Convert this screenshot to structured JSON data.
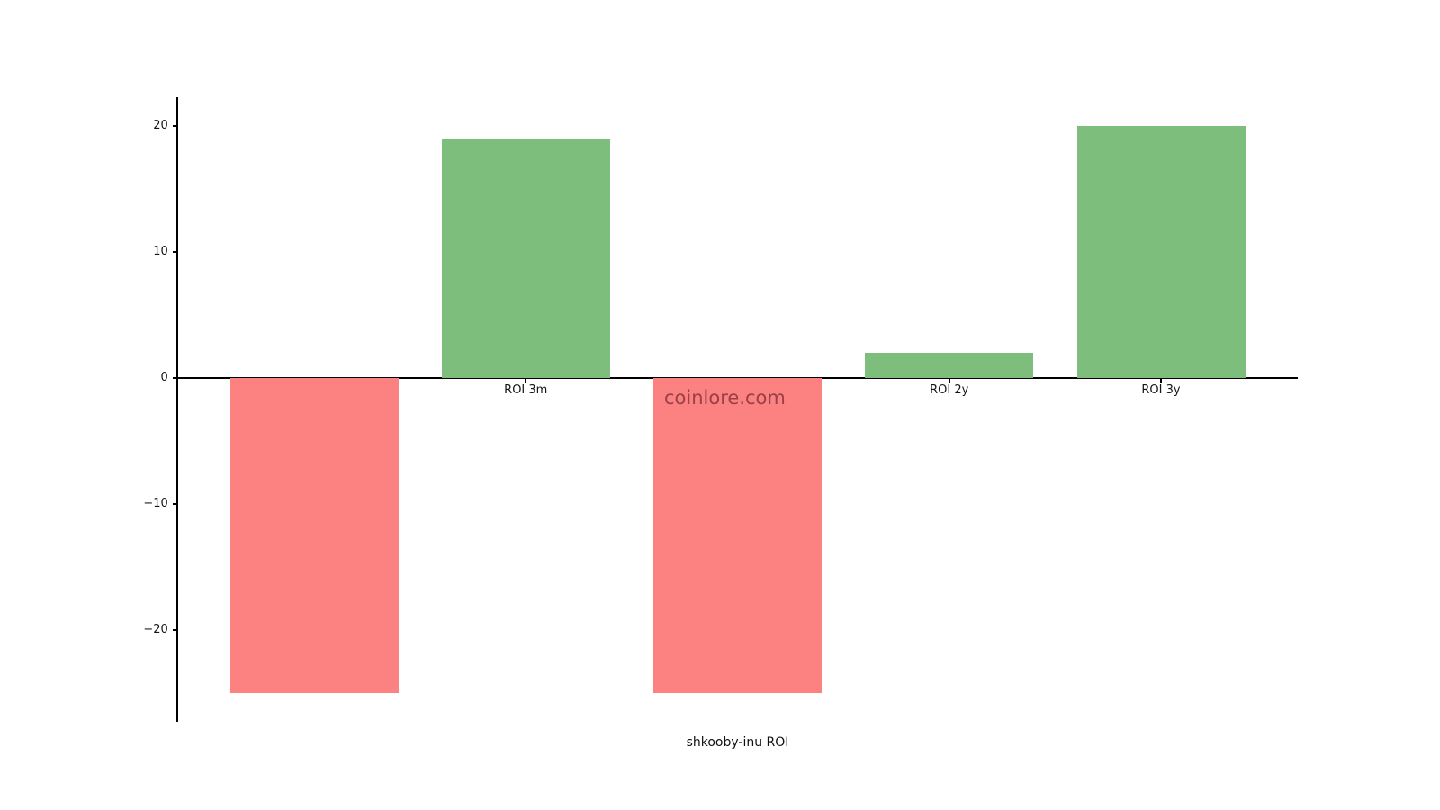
{
  "chart_data": {
    "type": "bar",
    "title": "shkooby-inu ROI",
    "watermark": "coinlore.com",
    "categories": [
      "",
      "ROI 3m",
      "",
      "ROI 2y",
      "ROI 3y"
    ],
    "values": [
      -25,
      19,
      -25,
      2,
      20
    ],
    "x_tick_indices": [
      1,
      3,
      4
    ],
    "y_ticks": [
      20,
      10,
      0,
      -10,
      -20
    ],
    "y_tick_labels": [
      "20",
      "10",
      "0",
      "−10",
      "−20"
    ],
    "ylim": [
      -27.25,
      22.25
    ],
    "positive_color": "#7dbe7d",
    "negative_color": "#fc8181",
    "axis_color": "#000000",
    "grid": false,
    "legend": null
  }
}
